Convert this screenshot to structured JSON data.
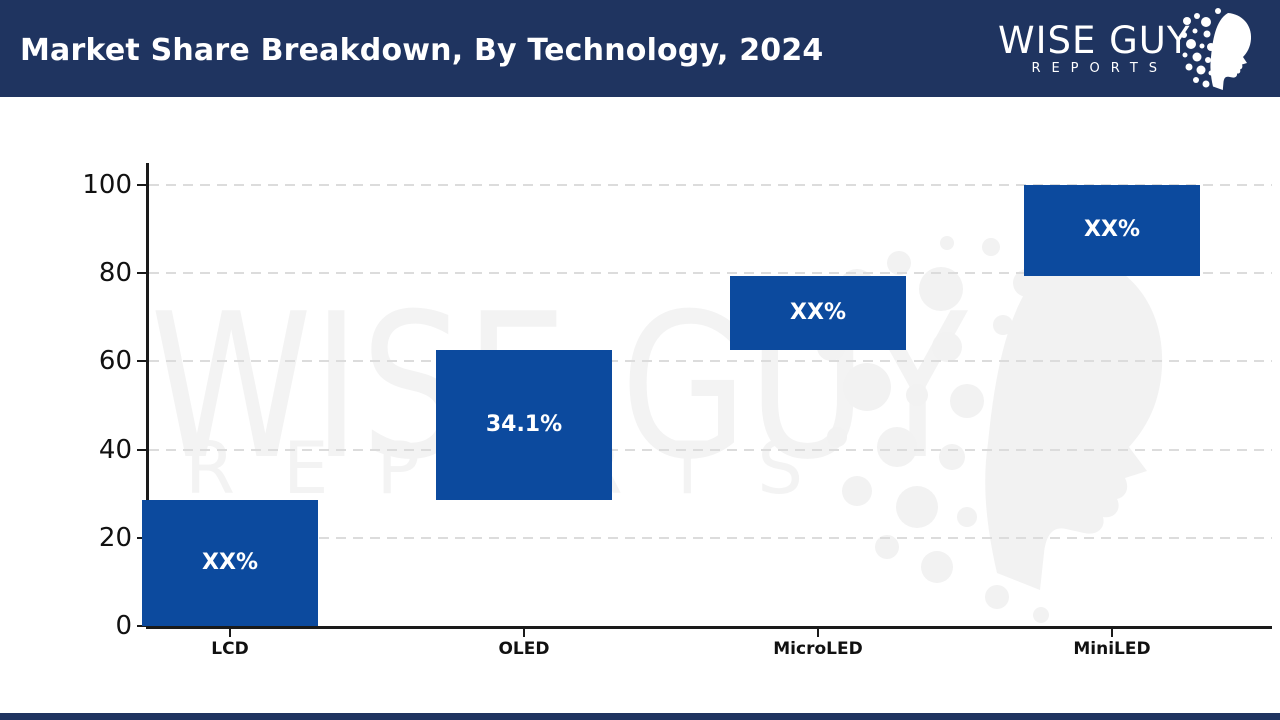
{
  "header": {
    "title": "Market Share Breakdown, By Technology, 2024",
    "background_color": "#1f3460",
    "logo": {
      "line1": "WISE GUY",
      "line2": "REPORTS"
    }
  },
  "watermark": {
    "line1": "WISE GUY",
    "line2": "REPORTS"
  },
  "footer": {
    "bar_color": "#1f3460"
  },
  "chart_data": {
    "type": "bar",
    "subtype": "waterfall",
    "title": "Market Share Breakdown, By Technology, 2024",
    "categories": [
      "LCD",
      "OLED",
      "MicroLED",
      "MiniLED"
    ],
    "segments": [
      {
        "category": "LCD",
        "start": 0,
        "end": 28.5,
        "label": "XX%"
      },
      {
        "category": "OLED",
        "start": 28.5,
        "end": 62.6,
        "label": "34.1%"
      },
      {
        "category": "MicroLED",
        "start": 62.6,
        "end": 79.4,
        "label": "XX%"
      },
      {
        "category": "MiniLED",
        "start": 79.4,
        "end": 100,
        "label": "XX%"
      }
    ],
    "values": [
      28.5,
      34.1,
      16.8,
      20.6
    ],
    "bar_labels": [
      "XX%",
      "34.1%",
      "XX%",
      "XX%"
    ],
    "bar_color": "#0c4a9e",
    "label_color": "#ffffff",
    "xlabel": "",
    "ylabel": "",
    "ylim": [
      0,
      100
    ],
    "yticks": [
      0,
      20,
      40,
      60,
      80,
      100
    ],
    "grid": "dashed horizontal",
    "legend": "none"
  }
}
